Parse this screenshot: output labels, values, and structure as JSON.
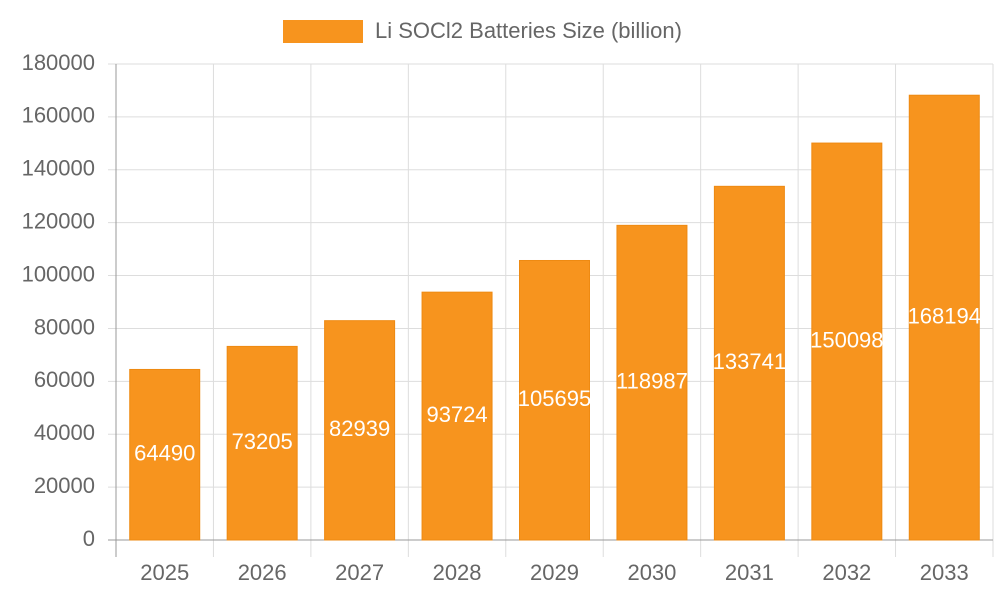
{
  "chart_data": {
    "type": "bar",
    "legend": "Li SOCl2 Batteries Size (billion)",
    "categories": [
      "2025",
      "2026",
      "2027",
      "2028",
      "2029",
      "2030",
      "2031",
      "2032",
      "2033"
    ],
    "values": [
      64490,
      73205,
      82939,
      93724,
      105695,
      118987,
      133741,
      150098,
      168194
    ],
    "color": "#f7941e",
    "ylim": [
      0,
      180000
    ],
    "yticks": [
      0,
      20000,
      40000,
      60000,
      80000,
      100000,
      120000,
      140000,
      160000,
      180000
    ],
    "grid": true
  }
}
